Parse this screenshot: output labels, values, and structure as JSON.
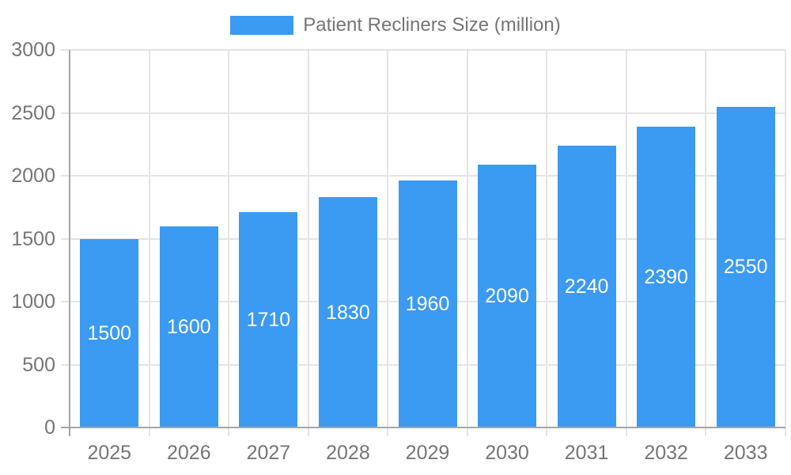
{
  "chart_data": {
    "type": "bar",
    "title": "Patient Recliners Size (million)",
    "categories": [
      "2025",
      "2026",
      "2027",
      "2028",
      "2029",
      "2030",
      "2031",
      "2032",
      "2033"
    ],
    "series": [
      {
        "name": "Patient Recliners Size (million)",
        "values": [
          1500,
          1600,
          1710,
          1830,
          1960,
          2090,
          2240,
          2390,
          2550
        ]
      }
    ],
    "xlabel": "",
    "ylabel": "",
    "ylim": [
      0,
      3000
    ],
    "ytick_step": 500,
    "ytick_labels": [
      "0",
      "500",
      "1000",
      "1500",
      "2000",
      "2500",
      "3000"
    ],
    "grid": true,
    "legend_position": "top-center",
    "value_labels": "inside-center",
    "colors": {
      "bar": "#3B9AF1",
      "bar_label_text": "#FFFFFF",
      "axis_text": "#757575",
      "grid_line": "#E4E4E4",
      "axis_line": "#A6A6A6"
    }
  }
}
